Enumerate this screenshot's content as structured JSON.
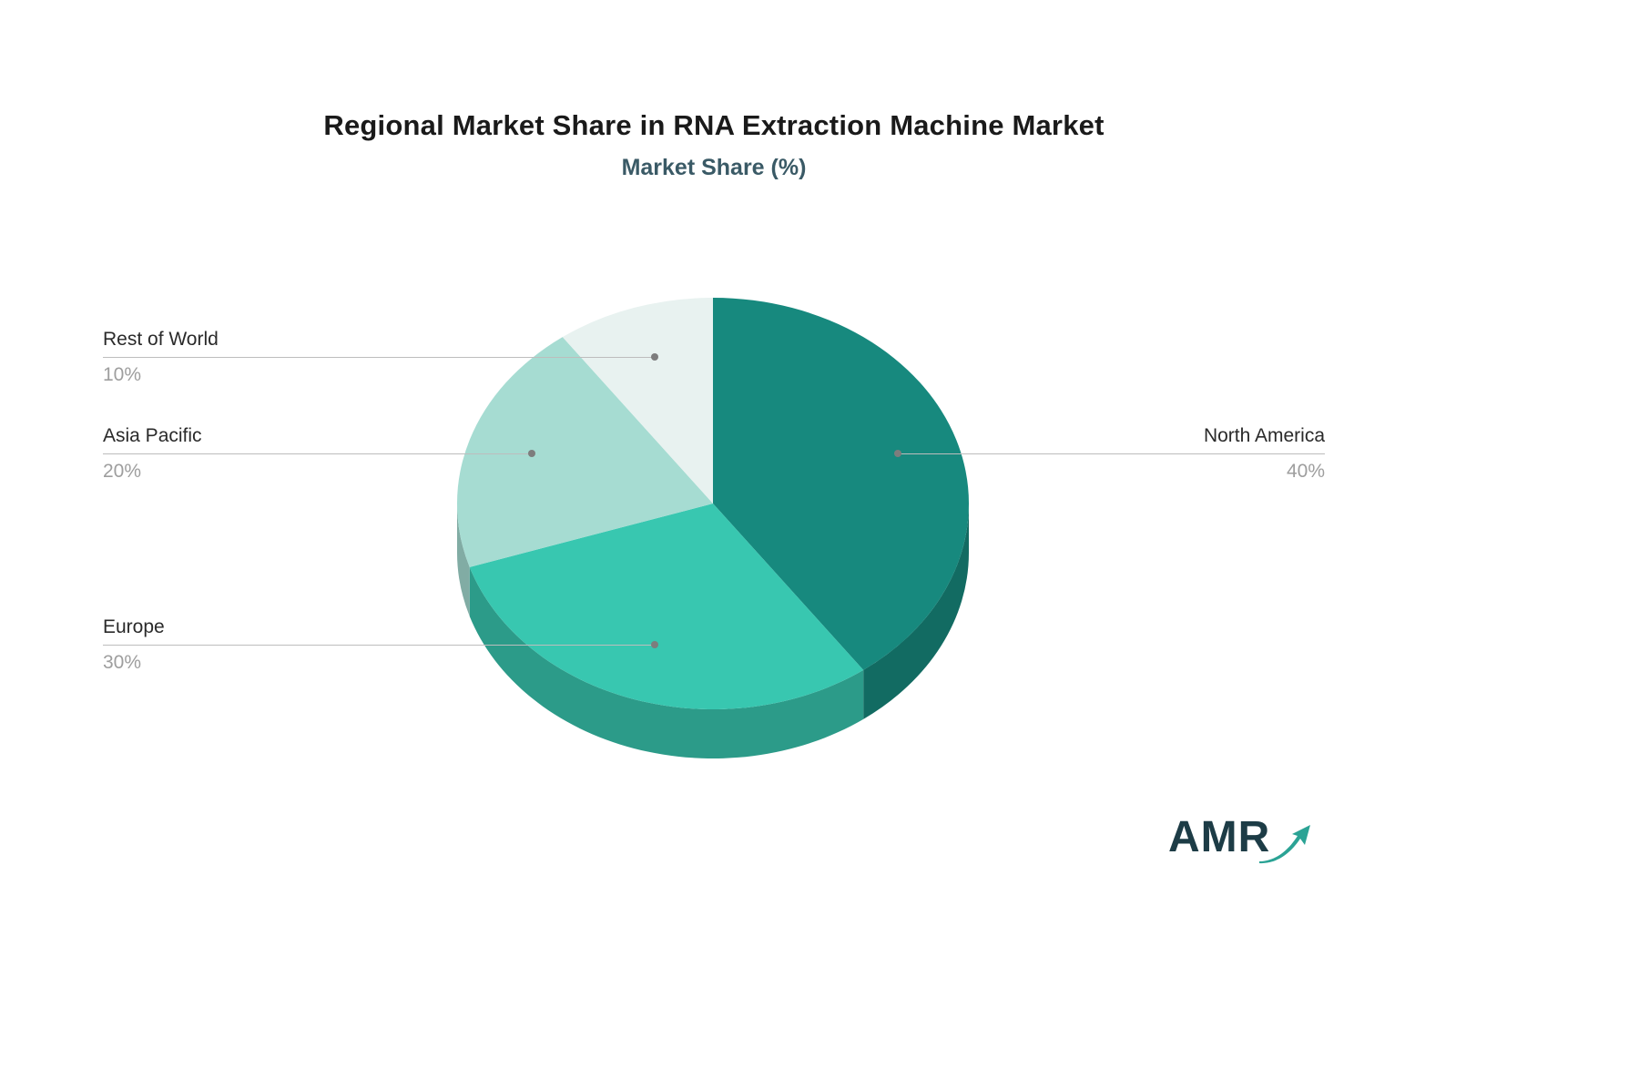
{
  "chart_data": {
    "type": "pie",
    "title": "Regional Market Share in RNA Extraction Machine Market",
    "subtitle": "Market Share (%)",
    "effect": "3d",
    "start_angle_deg": 0,
    "direction": "clockwise",
    "legend_position": "none",
    "slices": [
      {
        "label": "North America",
        "value": 40,
        "display": "40%",
        "color": "#17897e"
      },
      {
        "label": "Europe",
        "value": 30,
        "display": "30%",
        "color": "#38c7b0"
      },
      {
        "label": "Asia Pacific",
        "value": 20,
        "display": "20%",
        "color": "#a6dcd2"
      },
      {
        "label": "Rest of World",
        "value": 10,
        "display": "10%",
        "color": "#e8f2f0"
      }
    ]
  },
  "logo": {
    "text": "AMR",
    "arrow_color": "#2ba395"
  }
}
